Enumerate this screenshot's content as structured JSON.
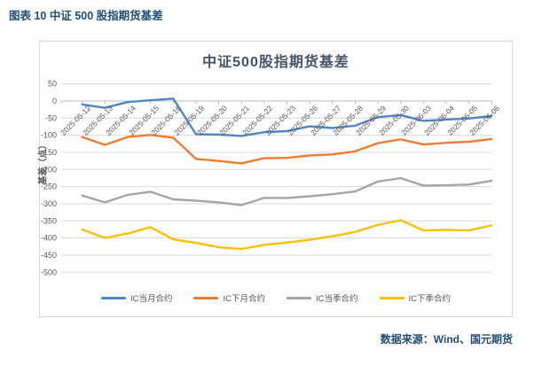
{
  "header": {
    "caption": "图表 10  中证 500 股指期货基差"
  },
  "footer": {
    "source": "数据来源：Wind、国元期货"
  },
  "colors": {
    "caption_text": "#1F4E79",
    "chart_title_text": "#44546A",
    "axis_text": "#595959",
    "gridline": "#D9D9D9",
    "axis_line": "#BFBFBF",
    "series_blue": "#4E87C6",
    "series_orange": "#ED7D31",
    "series_gray": "#A5A5A5",
    "series_yellow": "#FFC000"
  },
  "chart_data": {
    "type": "line",
    "title": "中证500股指期货基差",
    "xlabel": "",
    "ylabel": "基差（点）",
    "ylim": [
      -500,
      50
    ],
    "yticks": [
      50,
      0,
      -50,
      -100,
      -150,
      -200,
      -250,
      -300,
      -350,
      -400,
      -450,
      -500
    ],
    "grid": true,
    "legend_position": "bottom",
    "categories": [
      "2025-05-12",
      "2025-05-13",
      "2025-05-14",
      "2025-05-15",
      "2025-05-16",
      "2025-05-19",
      "2025-05-20",
      "2025-05-21",
      "2025-05-22",
      "2025-05-23",
      "2025-05-26",
      "2025-05-27",
      "2025-05-28",
      "2025-05-29",
      "2025-05-30",
      "2025-06-03",
      "2025-06-04",
      "2025-06-05",
      "2025-06-06"
    ],
    "series": [
      {
        "name": "IC当月合约",
        "id": "ic-current-month",
        "color": "#4E87C6",
        "values": [
          -10,
          -20,
          -3,
          2,
          7,
          -97,
          -98,
          -102,
          -91,
          -88,
          -74,
          -79,
          -72,
          -47,
          -41,
          -58,
          -54,
          -51,
          -44
        ]
      },
      {
        "name": "IC下月合约",
        "id": "ic-next-month",
        "color": "#ED7D31",
        "values": [
          -105,
          -128,
          -105,
          -99,
          -107,
          -169,
          -175,
          -182,
          -167,
          -166,
          -159,
          -156,
          -147,
          -123,
          -112,
          -127,
          -122,
          -119,
          -111
        ]
      },
      {
        "name": "IC当季合约",
        "id": "ic-current-quarter",
        "color": "#A5A5A5",
        "values": [
          -276,
          -296,
          -274,
          -265,
          -287,
          -291,
          -296,
          -304,
          -283,
          -283,
          -278,
          -272,
          -264,
          -235,
          -225,
          -247,
          -246,
          -244,
          -233
        ]
      },
      {
        "name": "IC下季合约",
        "id": "ic-next-quarter",
        "color": "#FFC000",
        "values": [
          -375,
          -400,
          -387,
          -368,
          -404,
          -414,
          -427,
          -432,
          -420,
          -413,
          -405,
          -395,
          -382,
          -362,
          -348,
          -378,
          -376,
          -378,
          -363
        ]
      }
    ]
  }
}
